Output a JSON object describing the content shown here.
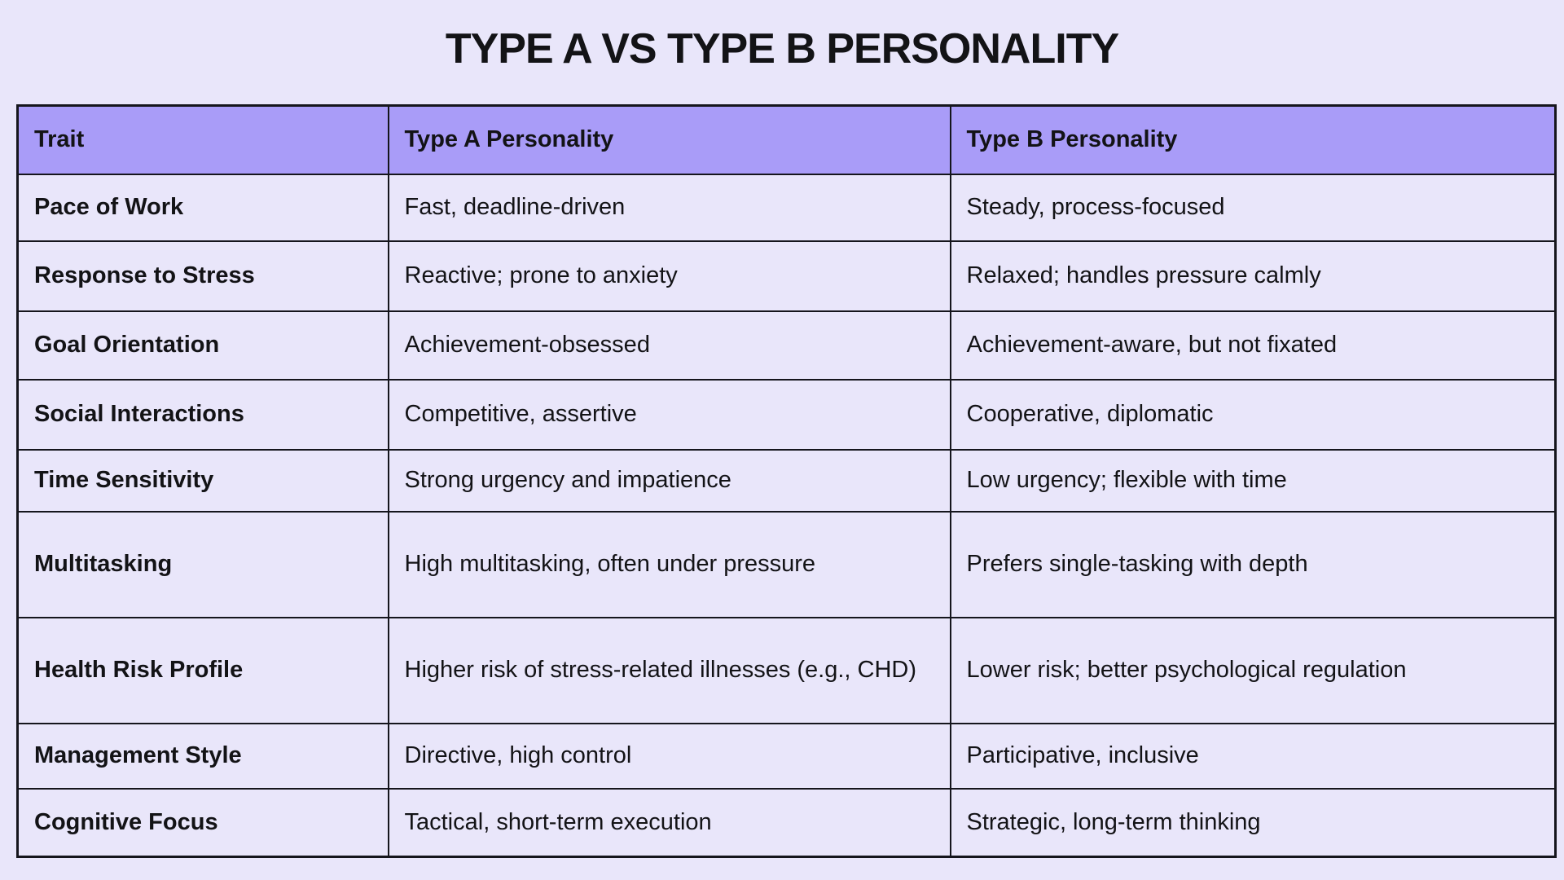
{
  "page": {
    "title": "TYPE A VS TYPE B PERSONALITY"
  },
  "colors": {
    "background": "#E9E6FA",
    "header_bg": "#A99CF8",
    "border": "#15151C",
    "text": "#131316"
  },
  "table": {
    "columns": [
      "Trait",
      "Type A Personality",
      "Type B Personality"
    ],
    "rows": [
      {
        "trait": "Pace of Work",
        "type_a": "Fast, deadline-driven",
        "type_b": "Steady, process-focused"
      },
      {
        "trait": "Response to Stress",
        "type_a": "Reactive; prone to anxiety",
        "type_b": "Relaxed; handles pressure calmly"
      },
      {
        "trait": "Goal Orientation",
        "type_a": "Achievement-obsessed",
        "type_b": "Achievement-aware, but not fixated"
      },
      {
        "trait": "Social Interactions",
        "type_a": "Competitive, assertive",
        "type_b": "Cooperative, diplomatic"
      },
      {
        "trait": "Time Sensitivity",
        "type_a": "Strong urgency and impatience",
        "type_b": "Low urgency; flexible with time"
      },
      {
        "trait": "Multitasking",
        "type_a": "High multitasking, often under pressure",
        "type_b": "Prefers single-tasking with depth"
      },
      {
        "trait": "Health Risk Profile",
        "type_a": "Higher risk of stress-related illnesses (e.g., CHD)",
        "type_b": "Lower risk; better psychological regulation"
      },
      {
        "trait": "Management Style",
        "type_a": "Directive, high control",
        "type_b": "Participative, inclusive"
      },
      {
        "trait": "Cognitive Focus",
        "type_a": "Tactical, short-term execution",
        "type_b": "Strategic, long-term thinking"
      }
    ]
  }
}
